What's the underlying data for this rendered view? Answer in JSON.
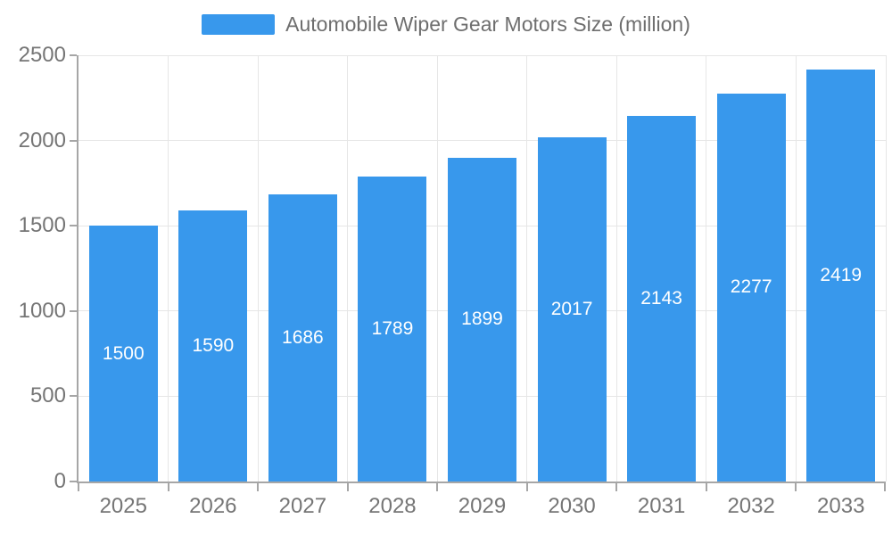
{
  "chart_data": {
    "type": "bar",
    "title": "Automobile Wiper Gear Motors Size (million)",
    "categories": [
      "2025",
      "2026",
      "2027",
      "2028",
      "2029",
      "2030",
      "2031",
      "2032",
      "2033"
    ],
    "values": [
      1500,
      1590,
      1686,
      1789,
      1899,
      2017,
      2143,
      2277,
      2419
    ],
    "xlabel": "",
    "ylabel": "",
    "ylim": [
      0,
      2500
    ],
    "yticks": [
      0,
      500,
      1000,
      1500,
      2000,
      2500
    ],
    "grid": true,
    "legend_position": "top-center",
    "legend_entries": [
      "Automobile Wiper Gear Motors Size (million)"
    ],
    "colors": {
      "bar": "#3898ec",
      "bar_value_label": "#ffffff",
      "axis_text": "#757575",
      "axis_line": "#a6a6a6",
      "gridline": "#e6e6e6",
      "legend_text": "#6e6e6e"
    }
  }
}
